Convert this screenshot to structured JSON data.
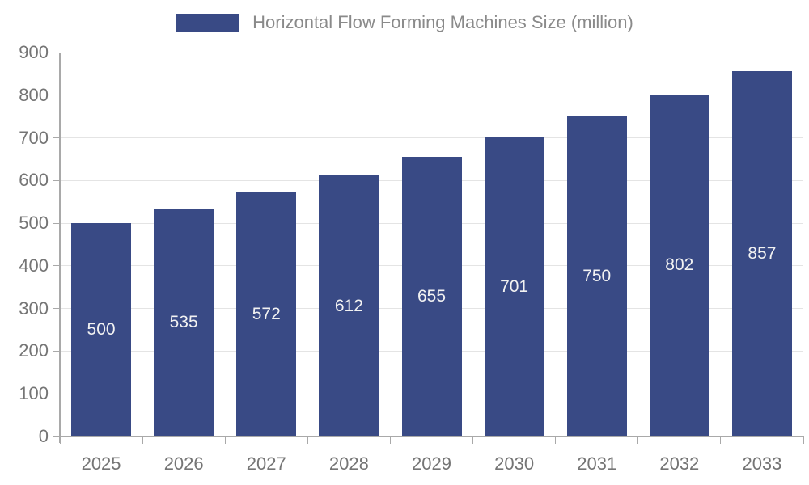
{
  "legend": {
    "label": "Horizontal Flow Forming Machines Size (million)"
  },
  "chart_data": {
    "type": "bar",
    "title": "Horizontal Flow Forming Machines Size (million)",
    "categories": [
      "2025",
      "2026",
      "2027",
      "2028",
      "2029",
      "2030",
      "2031",
      "2032",
      "2033"
    ],
    "values": [
      500,
      535,
      572,
      612,
      655,
      701,
      750,
      802,
      857
    ],
    "xlabel": "",
    "ylabel": "",
    "ylim": [
      0,
      900
    ],
    "ytick_interval": 100,
    "ytick_labels": [
      "0",
      "100",
      "200",
      "300",
      "400",
      "500",
      "600",
      "700",
      "800",
      "900"
    ],
    "grid": true,
    "legend_position": "top",
    "colors": {
      "bar": "#394A85",
      "value_label": "#f2f2f2",
      "axis_tick_label": "#757575",
      "legend_text": "#8a8a8a",
      "gridline": "#e4e4e4",
      "axis_line": "#a9a9a9"
    }
  }
}
